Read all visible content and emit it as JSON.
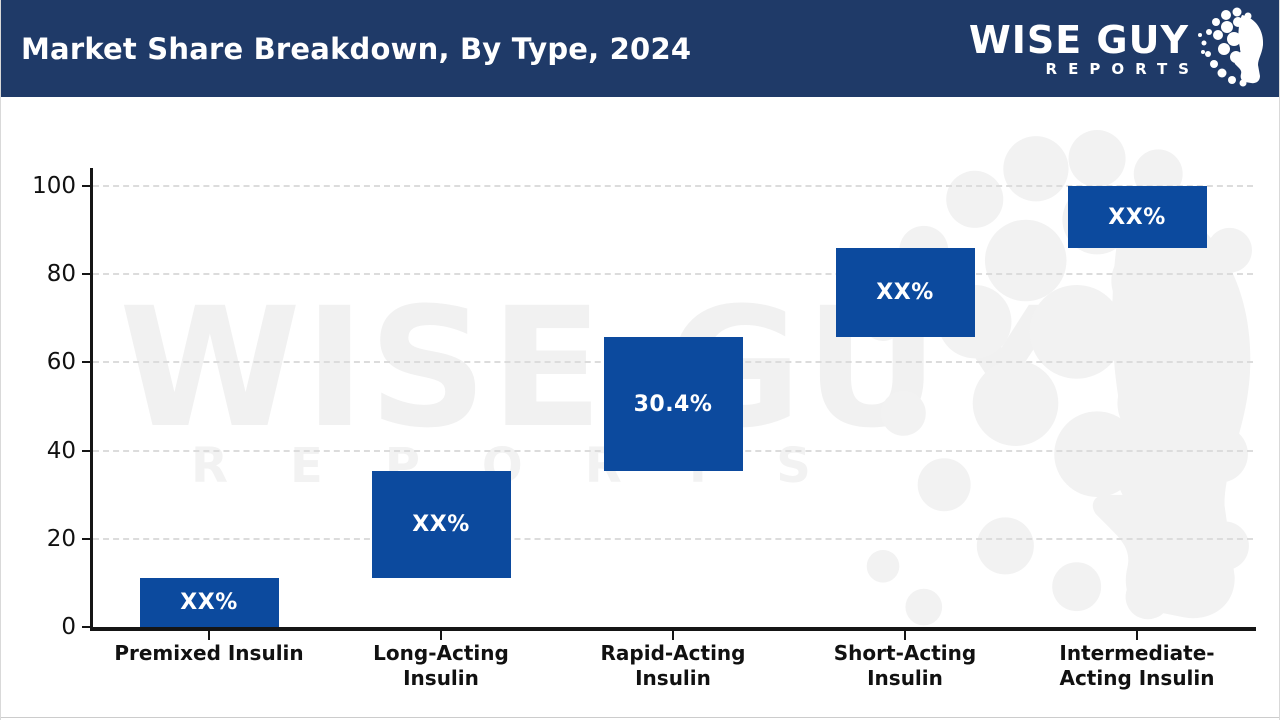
{
  "header": {
    "title": "Market Share Breakdown, By Type, 2024",
    "bg_color": "#1f3a68",
    "logo": {
      "line1": "WISE GUY",
      "line2": "REPORTS"
    }
  },
  "watermark": {
    "line1": "WISE GUY",
    "line2": "REPORTS"
  },
  "chart_data": {
    "type": "bar",
    "variant": "floating-waterfall",
    "title": "Market Share Breakdown, By Type, 2024",
    "categories": [
      "Premixed Insulin",
      "Long-Acting Insulin",
      "Rapid-Acting Insulin",
      "Short-Acting Insulin",
      "Intermediate-Acting Insulin"
    ],
    "category_label_lines": [
      [
        "Premixed Insulin"
      ],
      [
        "Long-Acting",
        "Insulin"
      ],
      [
        "Rapid-Acting",
        "Insulin"
      ],
      [
        "Short-Acting",
        "Insulin"
      ],
      [
        "Intermediate-",
        "Acting Insulin"
      ]
    ],
    "bars": [
      {
        "label": "XX%",
        "start": 0,
        "end": 11
      },
      {
        "label": "XX%",
        "start": 11,
        "end": 35.3
      },
      {
        "label": "30.4%",
        "start": 35.3,
        "end": 65.7
      },
      {
        "label": "XX%",
        "start": 65.7,
        "end": 85.9
      },
      {
        "label": "XX%",
        "start": 85.9,
        "end": 100
      }
    ],
    "segment_heights_pct": [
      11,
      24.3,
      30.4,
      20.2,
      14.1
    ],
    "ylim": [
      0,
      100
    ],
    "yticks": [
      0,
      20,
      40,
      60,
      80,
      100
    ],
    "xlabel": "",
    "ylabel": "",
    "grid": "horizontal-dashed",
    "legend": "none",
    "bar_color": "#0c4a9e",
    "bar_label_color": "#ffffff",
    "axis_color": "#151515",
    "gridline_color": "#dcdcdc"
  }
}
